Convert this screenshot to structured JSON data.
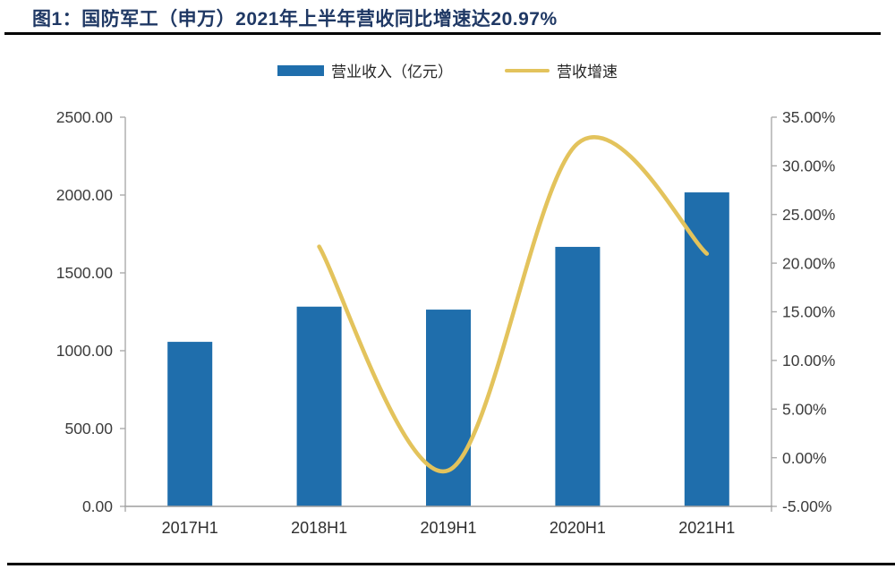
{
  "title": "图1：国防军工（申万）2021年上半年营收同比增速达20.97%",
  "colors": {
    "title_text": "#1F3864",
    "bar": "#1F6EAC",
    "line": "#E3C35C",
    "axis_line": "#ABABAB",
    "baseline": "#9E9E9E",
    "tick_text": "#3C3C3C"
  },
  "chart_data": {
    "type": "bar",
    "subtype": "bar+line combo, dual axis",
    "categories": [
      "2017H1",
      "2018H1",
      "2019H1",
      "2020H1",
      "2021H1"
    ],
    "series": [
      {
        "name": "营业收入（亿元）",
        "type": "bar",
        "axis": "left",
        "color": "#1F6EAC",
        "values": [
          1057,
          1283,
          1264,
          1667,
          2017
        ]
      },
      {
        "name": "营收增速",
        "type": "line",
        "axis": "right",
        "color": "#E3C35C",
        "values": [
          null,
          21.7,
          -1.3,
          32.3,
          20.97
        ]
      }
    ],
    "left_axis": {
      "min": 0,
      "max": 2500,
      "tick_step": 500,
      "tick_labels": [
        "0.00",
        "500.00",
        "1000.00",
        "1500.00",
        "2000.00",
        "2500.00"
      ]
    },
    "right_axis": {
      "min": -5,
      "max": 35,
      "tick_step": 5,
      "tick_labels": [
        "-5.00%",
        "0.00%",
        "5.00%",
        "10.00%",
        "15.00%",
        "20.00%",
        "25.00%",
        "30.00%",
        "35.00%"
      ]
    },
    "legend_position": "top",
    "grid": false,
    "highlight_note": "2021H1 yoy revenue growth 20.97%"
  }
}
